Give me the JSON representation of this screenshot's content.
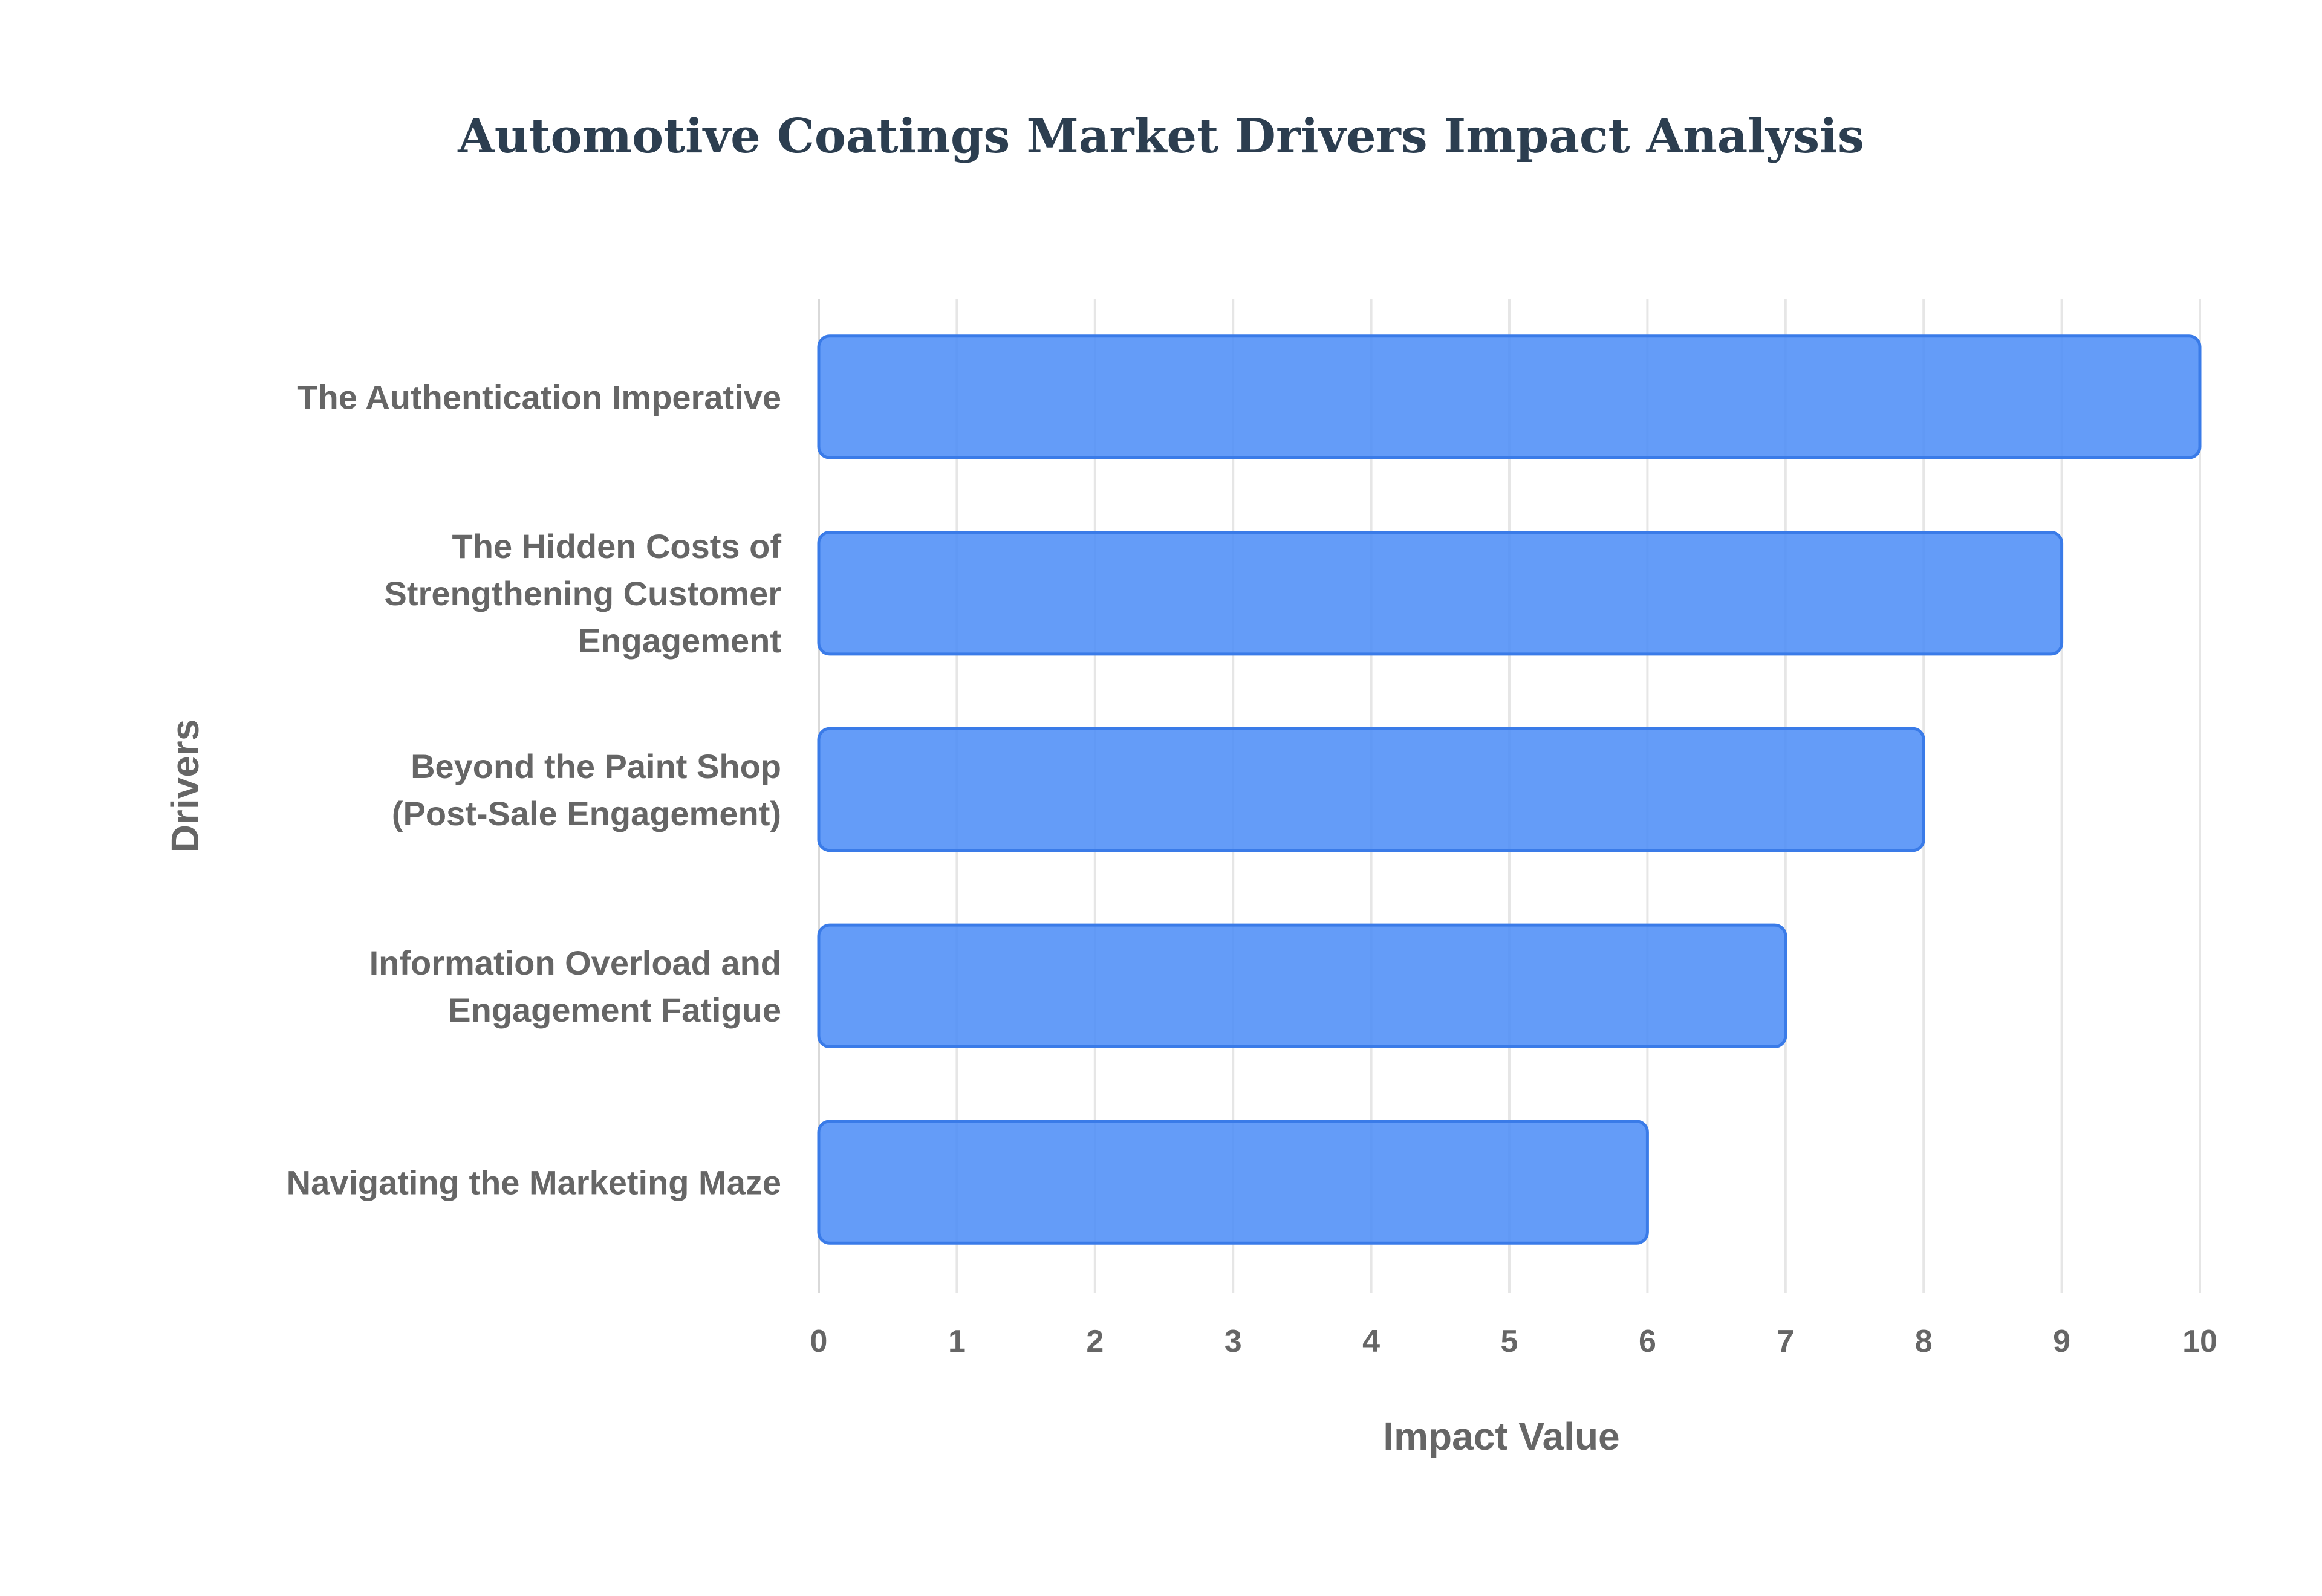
{
  "chart_data": {
    "type": "bar",
    "orientation": "horizontal",
    "title": "Automotive Coatings Market Drivers Impact Analysis",
    "xlabel": "Impact Value",
    "ylabel": "Drivers",
    "categories": [
      [
        "The Authentication Imperative"
      ],
      [
        "The Hidden Costs of",
        "Strengthening Customer",
        "Engagement"
      ],
      [
        "Beyond the Paint Shop",
        "(Post-Sale Engagement)"
      ],
      [
        "Information Overload and",
        "Engagement Fatigue"
      ],
      [
        "Navigating the Marketing Maze"
      ]
    ],
    "values": [
      10,
      9,
      8,
      7,
      6
    ],
    "xlim": [
      0,
      10
    ],
    "xticks": [
      "0",
      "1",
      "2",
      "3",
      "4",
      "5",
      "6",
      "7",
      "8",
      "9",
      "10"
    ],
    "grid": true,
    "legend": "none",
    "colors": {
      "bar_fill": "#4f8ef7",
      "bar_fill_opacity": 0.88,
      "bar_stroke": "#3a7be8",
      "title": "#2c3e50",
      "text": "#666666",
      "grid": "#e6e6e6"
    }
  }
}
